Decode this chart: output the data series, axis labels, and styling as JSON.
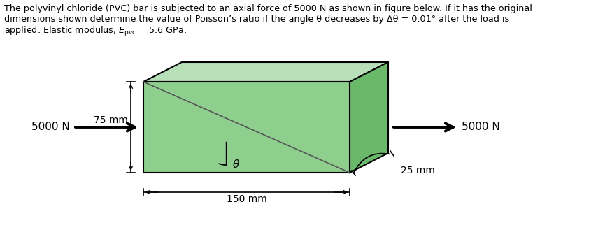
{
  "background_color": "#ffffff",
  "box_face_color": "#8ecf8e",
  "box_top_color": "#b8e0b8",
  "box_right_color": "#6ab86a",
  "box_edge_color": "#000000",
  "force_label": "5000 N",
  "dim_75": "75 mm",
  "dim_150": "150 mm",
  "dim_25": "25 mm",
  "theta_label": "θ",
  "header_line1": "The polyvinyl chloride (PVC) bar is subjected to an axial force of 5000 N as shown in figure below. If it has the original",
  "header_line2": "dimensions shown determine the value of Poisson’s ratio if the angle θ decreases by Δθ = 0.01° after the load is",
  "header_line3": "applied. Elastic modulus, $E_{\\mathrm{pvc}}$ = 5.6 GPa.",
  "fl": 205,
  "fb": 105,
  "fw": 295,
  "fh": 130,
  "ox": 55,
  "oy": 28
}
